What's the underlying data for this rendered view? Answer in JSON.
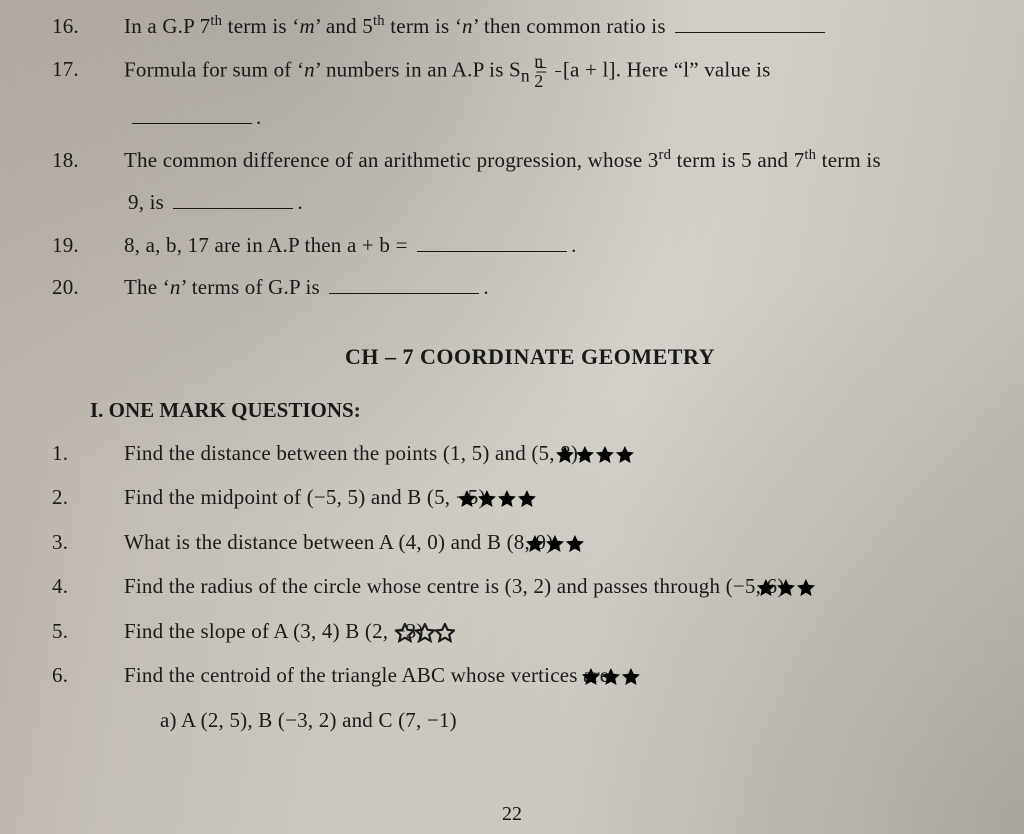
{
  "q16": {
    "num": "16.",
    "text_a": "In a G.P 7",
    "sup_a": "th",
    "text_b": " term is ‘",
    "m": "m",
    "text_c": "’ and 5",
    "sup_b": "th",
    "text_d": " term is ‘",
    "n": "n",
    "text_e": "’ then common ratio is "
  },
  "q17": {
    "num": "17.",
    "text_a": "Formula for sum of ‘",
    "n": "n",
    "text_b": "’ numbers in an A.P is S",
    "sub_n": "n",
    "eq": " = ",
    "frac_n": "n",
    "frac_d": "2",
    "bracket": "[a + l]",
    "tail": ". Here “l” value is"
  },
  "q18": {
    "num": "18.",
    "text_a": "The common difference of an arithmetic progression, whose 3",
    "sup_a": "rd",
    "text_b": " term is 5 and 7",
    "sup_b": "th",
    "text_c": " term is",
    "nine": "9, is "
  },
  "q19": {
    "num": "19.",
    "text": "8, a, b, 17 are in A.P then a + b = "
  },
  "q20": {
    "num": "20.",
    "text_a": "The ‘",
    "n": "n",
    "text_b": "’ terms of G.P is "
  },
  "chapter": "CH – 7 COORDINATE GEOMETRY",
  "sectionI": "I. ONE MARK QUESTIONS:",
  "g1": {
    "num": "1.",
    "text": "Find the distance between the points (1, 5) and (5, 8). "
  },
  "g2": {
    "num": "2.",
    "text": "Find the midpoint of (−5, 5) and B (5, −5) "
  },
  "g3": {
    "num": "3.",
    "text": "What is the distance between A (4, 0) and B (8, 0) "
  },
  "g4": {
    "num": "4.",
    "text": "Find the radius of the circle whose centre is (3, 2) and passes through (−5, 6) "
  },
  "g5": {
    "num": "5.",
    "text": "Find the slope of A (3, 4) B (2, −3) "
  },
  "g6": {
    "num": "6.",
    "text": "Find the centroid of the triangle ABC whose vertices are "
  },
  "g6a": {
    "label": "a)",
    "text": " A (2, 5), B (−3, 2) and C (7, −1)"
  },
  "stars": {
    "g1": 4,
    "g2": 4,
    "g3": 3,
    "g4": 3,
    "g5": 3,
    "g6": 3
  },
  "pagenum": "22"
}
